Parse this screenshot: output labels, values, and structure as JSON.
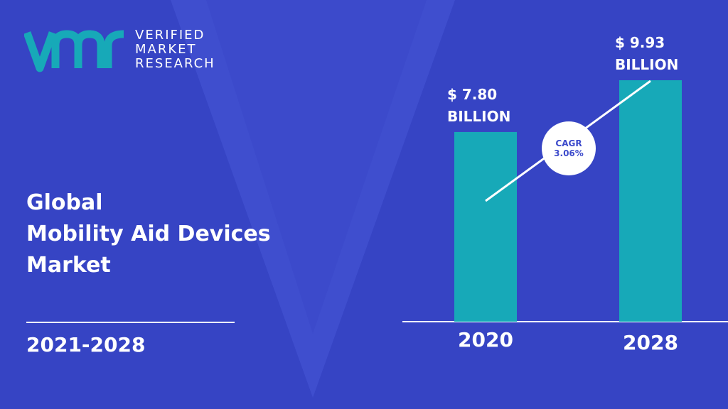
{
  "brand": {
    "logo_mark": "vmr",
    "lines": [
      "VERIFIED",
      "MARKET",
      "RESEARCH"
    ],
    "teal": "#17a9b8"
  },
  "title_lines": [
    "Global",
    "Mobility Aid Devices",
    "Market"
  ],
  "period": "2021-2028",
  "colors": {
    "background": "#3c4acb",
    "bar": "#17a9b8",
    "text": "#ffffff"
  },
  "chart_data": {
    "type": "bar",
    "categories": [
      "2020",
      "2028"
    ],
    "values": [
      7.8,
      9.93
    ],
    "value_labels": [
      [
        "$ 7.80",
        "BILLION"
      ],
      [
        "$ 9.93",
        "BILLION"
      ]
    ],
    "unit": "BILLION",
    "annotation": {
      "label": "CAGR",
      "value": "3.06%"
    },
    "title": "",
    "xlabel": "",
    "ylabel": "",
    "grid": false
  }
}
